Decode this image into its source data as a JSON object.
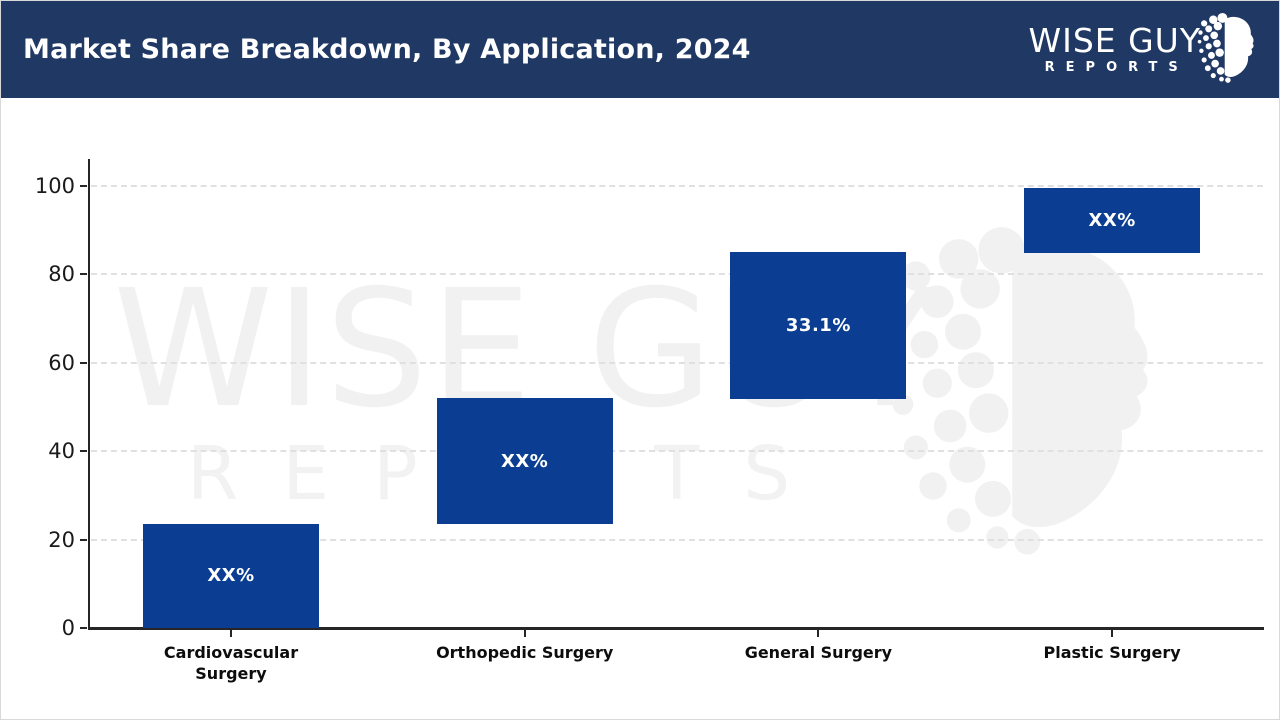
{
  "header": {
    "title": "Market Share Breakdown, By Application, 2024",
    "logo": {
      "line1": "WISE GUY",
      "line2": "REPORTS"
    }
  },
  "watermark": {
    "line1": "WISE GUY",
    "line2": "REPORTS"
  },
  "colors": {
    "header_bg": "#203864",
    "bar": "#0b3e92",
    "bar_label": "#ffffff",
    "grid": "#e0e0e0",
    "axis": "#262626",
    "tick_label": "#1a1a1a",
    "watermark": "#f1f1f1"
  },
  "chart_data": {
    "type": "bar",
    "subtype": "floating-waterfall",
    "title": "Market Share Breakdown, By Application, 2024",
    "categories": [
      "Cardiovascular Surgery",
      "Orthopedic Surgery",
      "General Surgery",
      "Plastic Surgery"
    ],
    "segments": [
      {
        "category": "Cardiovascular Surgery",
        "start": 0,
        "end": 23.6,
        "label": "XX%"
      },
      {
        "category": "Orthopedic Surgery",
        "start": 23.5,
        "end": 52.0,
        "label": "XX%"
      },
      {
        "category": "General Surgery",
        "start": 51.9,
        "end": 85.0,
        "label": "33.1%"
      },
      {
        "category": "Plastic Surgery",
        "start": 84.8,
        "end": 99.6,
        "label": "XX%"
      }
    ],
    "yticks": [
      0,
      20,
      40,
      60,
      80,
      100
    ],
    "ylim": [
      0,
      106
    ],
    "xlabel": "",
    "ylabel": "",
    "grid": "dashed-horizontal",
    "legend": "none"
  }
}
